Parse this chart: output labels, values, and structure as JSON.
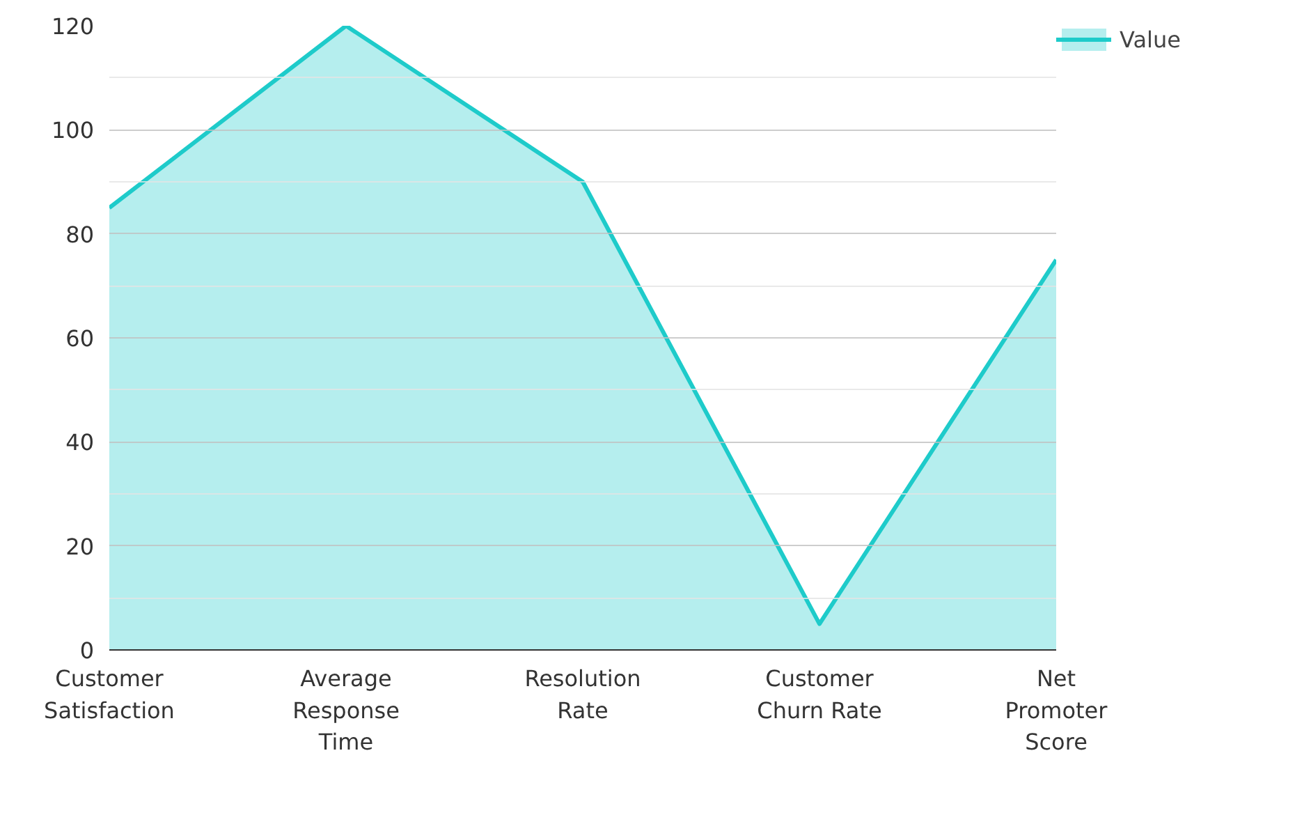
{
  "chart_data": {
    "type": "area",
    "categories": [
      "Customer Satisfaction",
      "Average Response Time",
      "Resolution Rate",
      "Customer Churn Rate",
      "Net Promoter Score"
    ],
    "series": [
      {
        "name": "Value",
        "color": "#1ecbca",
        "values": [
          85,
          120,
          90,
          5,
          75
        ]
      }
    ],
    "ylim": [
      0,
      120
    ],
    "yticks": [
      0,
      {
        "value": 10,
        "label": null
      },
      20,
      {
        "value": 30,
        "label": null
      },
      40,
      {
        "value": 50,
        "label": null
      },
      60,
      {
        "value": 70,
        "label": null
      },
      80,
      {
        "value": 90,
        "label": null
      },
      100,
      {
        "value": 110,
        "label": null
      },
      120
    ],
    "grid": "y",
    "legend": "top right"
  }
}
